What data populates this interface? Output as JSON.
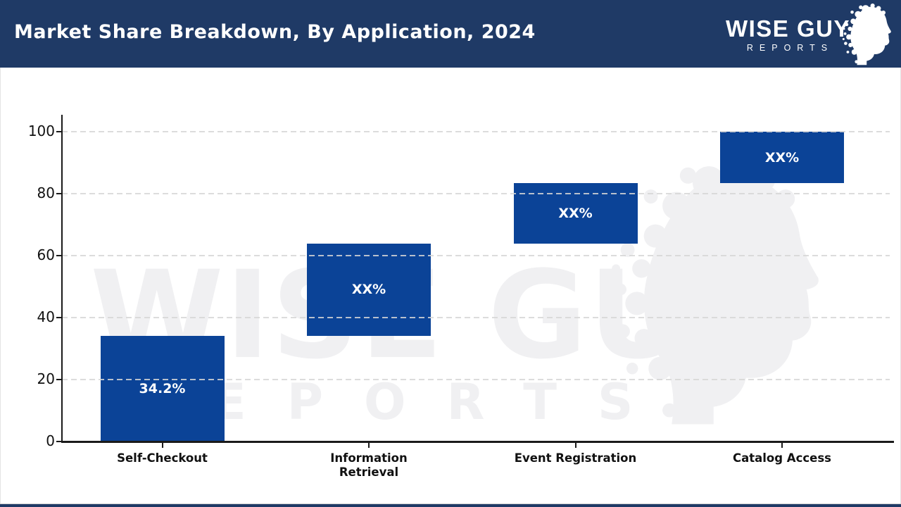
{
  "header": {
    "title": "Market Share Breakdown, By Application, 2024",
    "logo": {
      "brand": "WISE GUY",
      "sub": "REPORTS"
    }
  },
  "watermark": {
    "brand": "WISE GUY",
    "sub": "REPORTS"
  },
  "colors": {
    "header_bg": "#1f3a66",
    "footer_bg": "#1f3a66",
    "bar_fill": "#0b4397",
    "bar_label_text": "#ffffff",
    "gridline": "#d6d6d6",
    "axis": "#1a1a1a",
    "tick_text": "#111111",
    "watermark": "#f0f0f2",
    "background": "#ffffff"
  },
  "chart_data": {
    "type": "bar",
    "subtype": "floating-segment-waterfall",
    "title": "Market Share Breakdown, By Application, 2024",
    "xlabel": "",
    "ylabel": "",
    "ylim": [
      0,
      100
    ],
    "yticks": [
      0,
      20,
      40,
      60,
      80,
      100
    ],
    "grid": "horizontal-dashed",
    "legend": "none",
    "categories": [
      "Self-Checkout",
      "Information\nRetrieval",
      "Event Registration",
      "Catalog Access"
    ],
    "bars": [
      {
        "category": "Self-Checkout",
        "start": 0,
        "end": 34.2,
        "label": "34.2%"
      },
      {
        "category": "Information Retrieval",
        "start": 34.2,
        "end": 63.8,
        "label": "XX%"
      },
      {
        "category": "Event Registration",
        "start": 63.8,
        "end": 83.3,
        "label": "XX%"
      },
      {
        "category": "Catalog Access",
        "start": 83.3,
        "end": 100,
        "label": "XX%"
      }
    ]
  }
}
